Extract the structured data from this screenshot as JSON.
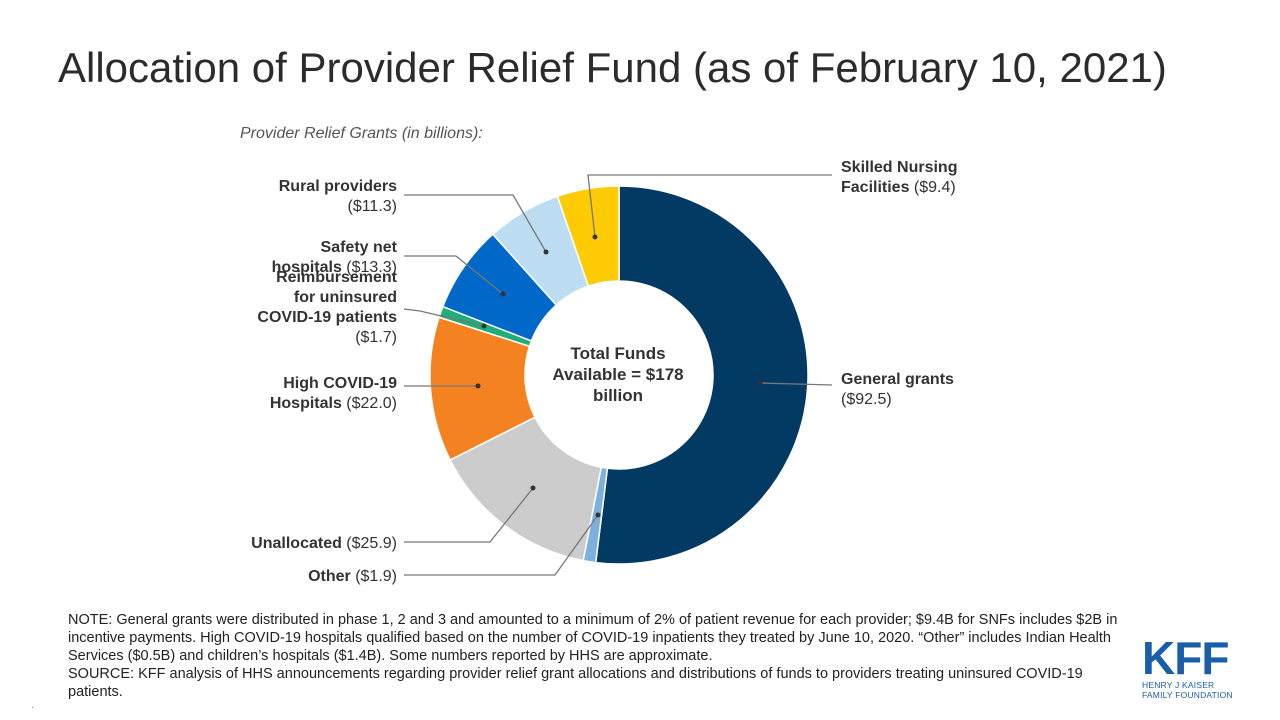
{
  "title": "Allocation of Provider Relief Fund (as of February 10, 2021)",
  "subtitle": "Provider Relief Grants (in billions):",
  "center_text": [
    "Total Funds",
    "Available = $178",
    "billion"
  ],
  "chart_data": {
    "type": "pie",
    "title": "Allocation of Provider Relief Fund (as of February 10, 2021)",
    "subtitle": "Provider Relief Grants (in billions):",
    "unit": "billions",
    "total": 178,
    "slices": [
      {
        "name": "General grants",
        "value": 92.5,
        "color": "#023a63",
        "label_lines": [
          {
            "bold": "General grants",
            "rest": ""
          },
          {
            "bold": "",
            "rest": "($92.5)"
          }
        ]
      },
      {
        "name": "Other",
        "value": 1.9,
        "color": "#7cb1de",
        "label_lines": [
          {
            "bold": "Other",
            "rest": " ($1.9)"
          }
        ]
      },
      {
        "name": "Unallocated",
        "value": 25.9,
        "color": "#cccccc",
        "label_lines": [
          {
            "bold": "Unallocated",
            "rest": " ($25.9)"
          }
        ]
      },
      {
        "name": "High COVID-19 Hospitals",
        "value": 22.0,
        "color": "#f58220",
        "label_lines": [
          {
            "bold": "High COVID-19",
            "rest": ""
          },
          {
            "bold": "Hospitals",
            "rest": " ($22.0)"
          }
        ]
      },
      {
        "name": "Reimbursement for uninsured COVID-19 patients",
        "value": 1.7,
        "color": "#1fad7a",
        "label_lines": [
          {
            "bold": "Reimbursement",
            "rest": ""
          },
          {
            "bold": "for uninsured",
            "rest": ""
          },
          {
            "bold": "COVID-19 patients",
            "rest": ""
          },
          {
            "bold": "",
            "rest": "($1.7)"
          }
        ]
      },
      {
        "name": "Safety net hospitals",
        "value": 13.3,
        "color": "#0068c9",
        "label_lines": [
          {
            "bold": "Safety net",
            "rest": ""
          },
          {
            "bold": "hospitals",
            "rest": " ($13.3)"
          }
        ]
      },
      {
        "name": "Rural providers",
        "value": 11.3,
        "color": "#bdddf2",
        "label_lines": [
          {
            "bold": "Rural providers",
            "rest": ""
          },
          {
            "bold": "",
            "rest": "($11.3)"
          }
        ]
      },
      {
        "name": "Skilled Nursing Facilities",
        "value": 9.4,
        "color": "#ffcb05",
        "label_lines": [
          {
            "bold": "Skilled Nursing",
            "rest": ""
          },
          {
            "bold": "Facilities",
            "rest": " ($9.4)"
          }
        ]
      }
    ]
  },
  "notes": [
    "NOTE: General grants were distributed in phase 1, 2 and 3 and amounted to a minimum of 2% of patient revenue for each provider; $9.4B for SNFs includes $2B in incentive payments. High COVID-19 hospitals qualified based on the number of COVID-19 inpatients they treated by June 10, 2020. “Other” includes Indian Health Services ($0.5B) and children’s hospitals ($1.4B). Some numbers reported by HHS are approximate.",
    "SOURCE: KFF analysis of HHS announcements regarding provider relief grant allocations and distributions of funds to providers treating uninsured COVID-19 patients."
  ],
  "logo": {
    "mark": "KFF",
    "line1": "HENRY J KAISER",
    "line2": "FAMILY FOUNDATION"
  },
  "footer_mark": "."
}
